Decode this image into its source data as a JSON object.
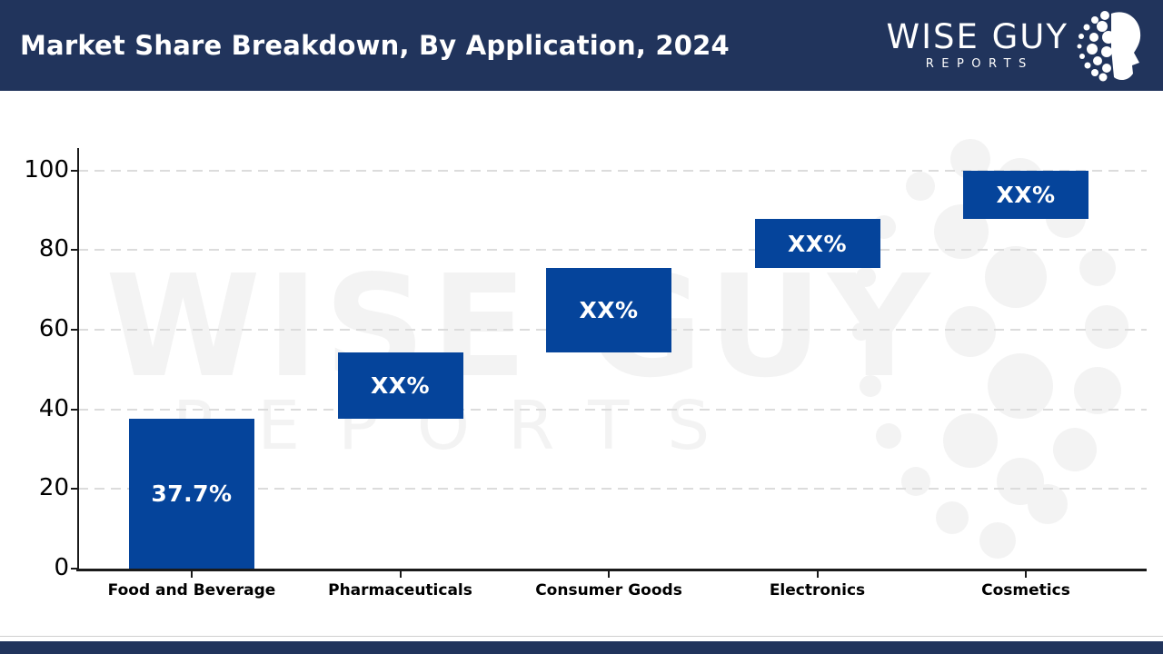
{
  "header": {
    "title": "Market Share Breakdown, By Application, 2024",
    "logo": {
      "line1": "WISE GUY",
      "line2": "REPORTS"
    }
  },
  "watermark": {
    "line1": "WISE GUY",
    "line2": "REPORTS"
  },
  "chart_data": {
    "type": "bar",
    "subtype": "waterfall",
    "title": "Market Share Breakdown, By Application, 2024",
    "categories": [
      "Food and Beverage",
      "Pharmaceuticals",
      "Consumer Goods",
      "Electronics",
      "Cosmetics"
    ],
    "values": [
      {
        "category": "Food and Beverage",
        "start": 0,
        "end": 37.7,
        "label": "37.7%"
      },
      {
        "category": "Pharmaceuticals",
        "start": 37.7,
        "end": 54.3,
        "label": "XX%"
      },
      {
        "category": "Consumer Goods",
        "start": 54.3,
        "end": 75.5,
        "label": "XX%"
      },
      {
        "category": "Electronics",
        "start": 75.5,
        "end": 87.7,
        "label": "XX%"
      },
      {
        "category": "Cosmetics",
        "start": 87.7,
        "end": 100,
        "label": "XX%"
      }
    ],
    "ylim": [
      0,
      107
    ],
    "yticks": [
      0,
      20,
      40,
      60,
      80,
      100
    ],
    "xlabel": "",
    "ylabel": "",
    "grid": "horizontal-dashed",
    "legend": "none",
    "bar_color": "#05449B",
    "label_color": "#FFFFFF"
  },
  "colors": {
    "header_bg": "#21345C",
    "footer_bg": "#21345C",
    "bar": "#05449B",
    "bar_label": "#FFFFFF",
    "gridline": "#DCDCDC",
    "axis": "#1A1A1A",
    "watermark": "#F3F3F3",
    "title": "#FFFFFF"
  }
}
